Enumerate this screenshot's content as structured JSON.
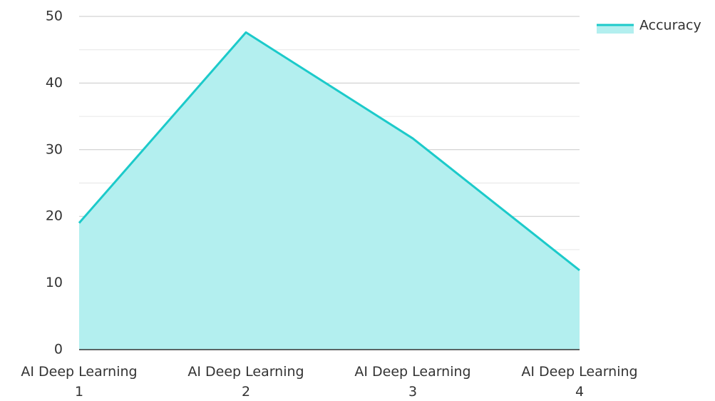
{
  "chart_data": {
    "type": "area",
    "categories": [
      "AI Deep Learning 1",
      "AI Deep Learning 2",
      "AI Deep Learning 3",
      "AI Deep Learning 4"
    ],
    "series": [
      {
        "name": "Accuracy",
        "color": "#1ccaca",
        "fill": "#b3efef",
        "values": [
          19,
          47.6,
          31.7,
          11.9
        ]
      }
    ],
    "ylim": [
      0,
      50
    ],
    "yticks": [
      0,
      10,
      20,
      30,
      40,
      50
    ],
    "minor_yticks": [
      5,
      15,
      25,
      35,
      45
    ],
    "grid": true,
    "legend": "top-right"
  }
}
